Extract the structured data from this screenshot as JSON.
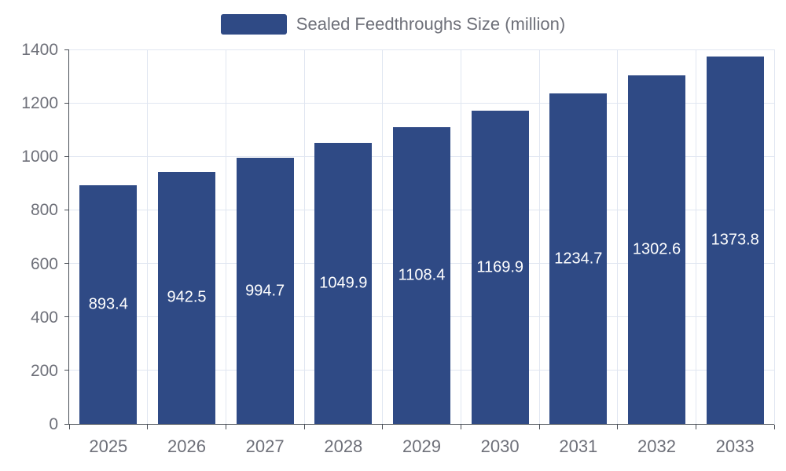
{
  "legend": {
    "label": "Sealed Feedthroughs Size (million)",
    "swatch_color": "#2f4a85"
  },
  "chart_data": {
    "type": "bar",
    "title": "",
    "xlabel": "",
    "ylabel": "",
    "series_name": "Sealed Feedthroughs Size (million)",
    "categories": [
      "2025",
      "2026",
      "2027",
      "2028",
      "2029",
      "2030",
      "2031",
      "2032",
      "2033"
    ],
    "values": [
      893.4,
      942.5,
      994.7,
      1049.9,
      1108.4,
      1169.9,
      1234.7,
      1302.6,
      1373.8
    ],
    "data_labels": [
      "893.4",
      "942.5",
      "994.7",
      "1049.9",
      "1108.4",
      "1169.9",
      "1234.7",
      "1302.6",
      "1373.8"
    ],
    "ylim": [
      0,
      1400
    ],
    "yticks": [
      0,
      200,
      400,
      600,
      800,
      1000,
      1200,
      1400
    ],
    "grid": true,
    "legend_position": "top",
    "bar_color": "#2f4a85",
    "bar_label_color": "#ffffff",
    "grid_color": "#e0e6f1",
    "axis_color": "#4a4f57",
    "text_color": "#6e7079"
  }
}
